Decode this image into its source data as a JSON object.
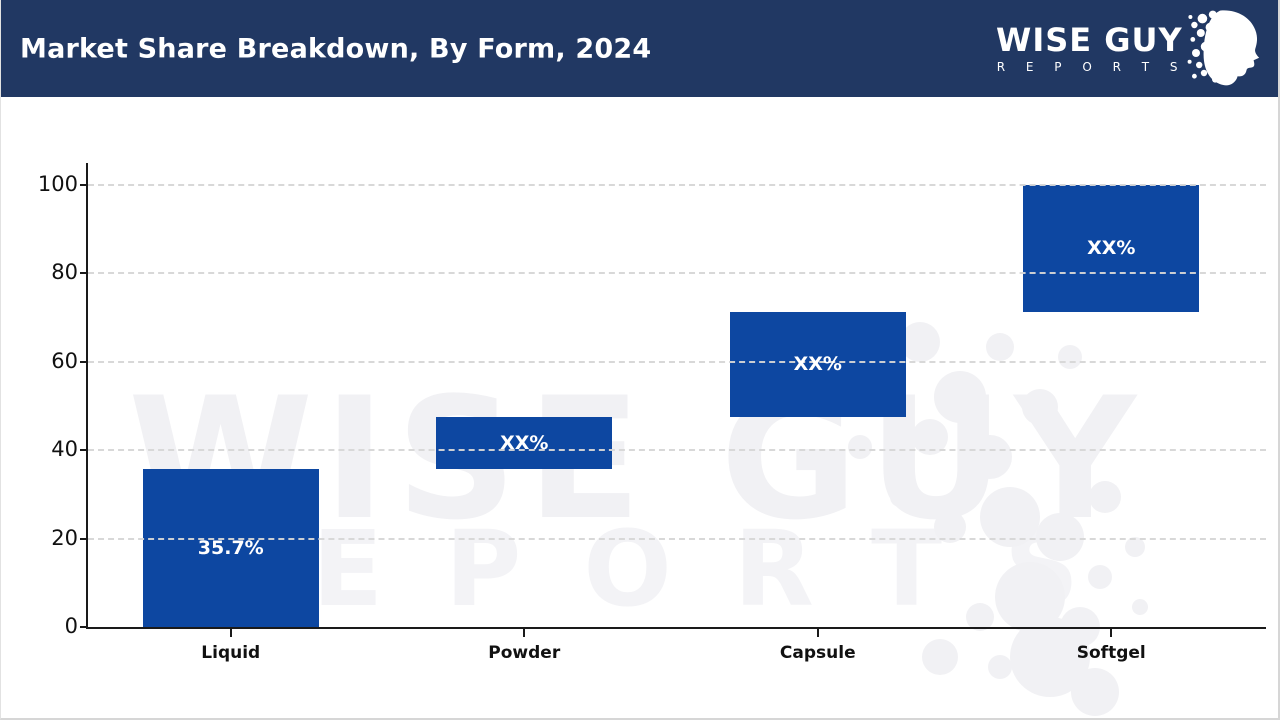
{
  "header": {
    "title": "Market Share Breakdown, By Form, 2024",
    "logo": {
      "brand": "WISE GUY",
      "sub": "REPORTS"
    }
  },
  "watermark": {
    "line1": "WISE GUY",
    "line2": "REPORTS"
  },
  "chart_data": {
    "type": "bar",
    "variant": "waterfall",
    "title": "Market Share Breakdown, By Form, 2024",
    "categories": [
      "Liquid",
      "Powder",
      "Capsule",
      "Softgel"
    ],
    "series": [
      {
        "name": "Market share (%)",
        "segments": [
          {
            "category": "Liquid",
            "start": 0,
            "end": 35.7,
            "label": "35.7%"
          },
          {
            "category": "Powder",
            "start": 35.7,
            "end": 47.5,
            "label": "XX%"
          },
          {
            "category": "Capsule",
            "start": 47.5,
            "end": 71.3,
            "label": "XX%"
          },
          {
            "category": "Softgel",
            "start": 71.3,
            "end": 100,
            "label": "XX%"
          }
        ]
      }
    ],
    "yticks": [
      0,
      20,
      40,
      60,
      80,
      100
    ],
    "ylim": [
      0,
      105
    ],
    "xlabel": "",
    "ylabel": "",
    "grid": "horizontal-dashed-above-bars",
    "legend": "none",
    "bar_color": "#0d47a1",
    "bar_label_color": "#ffffff"
  },
  "colors": {
    "header_bg": "#213863",
    "bar": "#0d47a1",
    "grid": "#d9d9d9",
    "axis": "#1a1a1a",
    "watermark": "#f1f1f4"
  }
}
